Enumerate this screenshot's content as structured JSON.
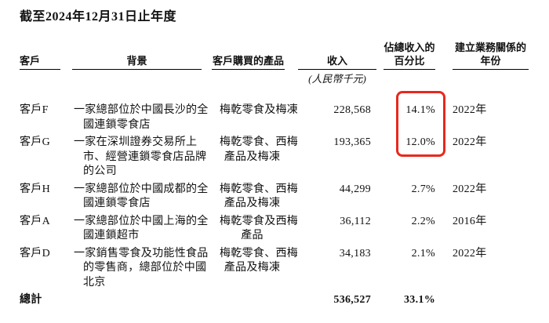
{
  "title": "截至2024年12月31日止年度",
  "table": {
    "columns": {
      "customer": "客戶",
      "background": "背景",
      "products": "客戶購買的產品",
      "revenue": "收入",
      "revenue_unit": "(人民幣千元)",
      "pct_line1": "佔總收入的",
      "pct_line2": "百分比",
      "year_line1": "建立業務關係的",
      "year_line2": "年份"
    },
    "rows": [
      {
        "customer": "客戶F",
        "background_lines": [
          "一家總部位於中國長沙的全",
          "國連鎖零食店"
        ],
        "product_lines": [
          "梅乾零食及梅凍"
        ],
        "revenue": "228,568",
        "pct": "14.1%",
        "year": "2022年"
      },
      {
        "customer": "客戶G",
        "background_lines": [
          "一家在深圳證券交易所上",
          "市、經營連鎖零食店品牌",
          "的公司"
        ],
        "product_lines": [
          "梅乾零食、西梅",
          "產品及梅凍"
        ],
        "revenue": "193,365",
        "pct": "12.0%",
        "year": "2022年"
      },
      {
        "customer": "客戶H",
        "background_lines": [
          "一家總部位於中國成都的全",
          "國連鎖零食店"
        ],
        "product_lines": [
          "梅乾零食、西梅",
          "產品及梅凍"
        ],
        "revenue": "44,299",
        "pct": "2.7%",
        "year": "2022年"
      },
      {
        "customer": "客戶A",
        "background_lines": [
          "一家總部位於中國上海的全",
          "國連鎖超市"
        ],
        "product_lines": [
          "梅乾零食及西梅",
          "產品"
        ],
        "revenue": "36,112",
        "pct": "2.2%",
        "year": "2016年"
      },
      {
        "customer": "客戶D",
        "background_lines": [
          "一家銷售零食及功能性食品",
          "的零售商，總部位於中國",
          "北京"
        ],
        "product_lines": [
          "梅乾零食、西梅",
          "產品及梅凍"
        ],
        "revenue": "34,183",
        "pct": "2.1%",
        "year": "2022年"
      }
    ],
    "total": {
      "label": "總計",
      "revenue": "536,527",
      "pct": "33.1%"
    }
  },
  "highlight": {
    "color": "#e8281e"
  }
}
